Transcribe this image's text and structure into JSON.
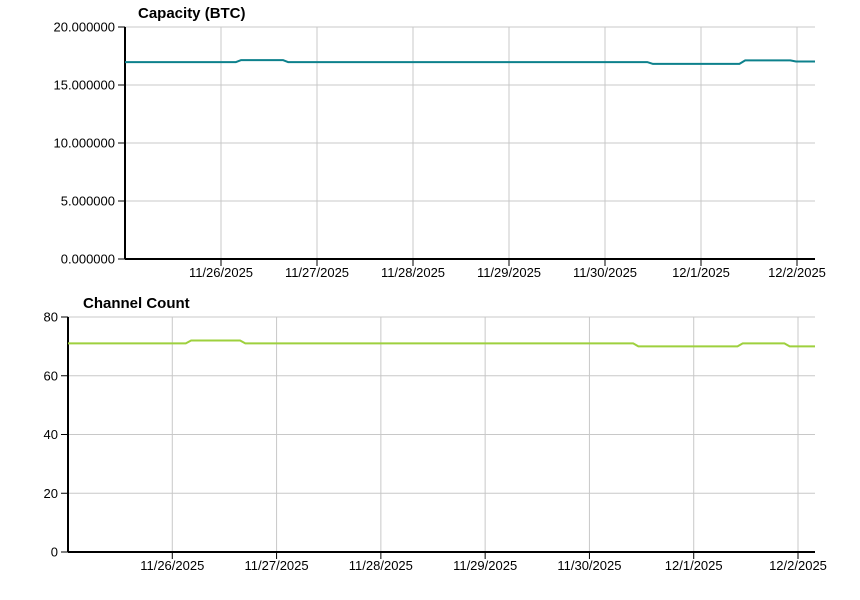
{
  "colors": {
    "background": "#ffffff",
    "grid": "#c8c8c8",
    "axis": "#000000",
    "text": "#000000",
    "capacity_line": "#0d818c",
    "channel_line": "#9ed03e"
  },
  "chart_data": [
    {
      "type": "line",
      "title": "Capacity (BTC)",
      "xlabel": "",
      "ylabel": "",
      "ylim": [
        0,
        20
      ],
      "xlim_days": [
        0,
        7.1875
      ],
      "grid": true,
      "legend": false,
      "y_tick_labels": [
        "20.000000",
        "15.000000",
        "10.000000",
        "5.000000",
        "0.000000"
      ],
      "x_tick_labels": [
        "11/26/2025",
        "11/27/2025",
        "11/28/2025",
        "11/29/2025",
        "11/30/2025",
        "12/1/2025",
        "12/2/2025"
      ],
      "x_tick_positions_days": [
        1,
        2,
        3,
        4,
        5,
        6,
        7
      ],
      "series": [
        {
          "name": "capacity_btc",
          "color": "#0d818c",
          "points": [
            [
              0,
              16.97
            ],
            [
              1.156,
              16.97
            ],
            [
              1.21,
              17.15
            ],
            [
              1.645,
              17.15
            ],
            [
              1.698,
              16.97
            ],
            [
              5.44,
              16.97
            ],
            [
              5.5,
              16.82
            ],
            [
              6.4,
              16.82
            ],
            [
              6.46,
              17.12
            ],
            [
              6.93,
              17.12
            ],
            [
              6.99,
              17.03
            ],
            [
              7.1875,
              17.03
            ]
          ]
        }
      ]
    },
    {
      "type": "line",
      "title": "Channel Count",
      "xlabel": "",
      "ylabel": "",
      "ylim": [
        0,
        80
      ],
      "xlim_days": [
        0,
        7.163
      ],
      "grid": true,
      "legend": false,
      "y_tick_labels": [
        "80",
        "60",
        "40",
        "20",
        "0"
      ],
      "x_tick_labels": [
        "11/26/2025",
        "11/27/2025",
        "11/28/2025",
        "11/29/2025",
        "11/30/2025",
        "12/1/2025",
        "12/2/2025"
      ],
      "x_tick_positions_days": [
        1,
        2,
        3,
        4,
        5,
        6,
        7
      ],
      "series": [
        {
          "name": "channel_count",
          "color": "#9ed03e",
          "points": [
            [
              0,
              71
            ],
            [
              1.13,
              71
            ],
            [
              1.18,
              72
            ],
            [
              1.65,
              72
            ],
            [
              1.7,
              71
            ],
            [
              5.42,
              71
            ],
            [
              5.47,
              70
            ],
            [
              6.42,
              70
            ],
            [
              6.47,
              71
            ],
            [
              6.87,
              71
            ],
            [
              6.92,
              70
            ],
            [
              7.163,
              70
            ]
          ]
        }
      ]
    }
  ]
}
